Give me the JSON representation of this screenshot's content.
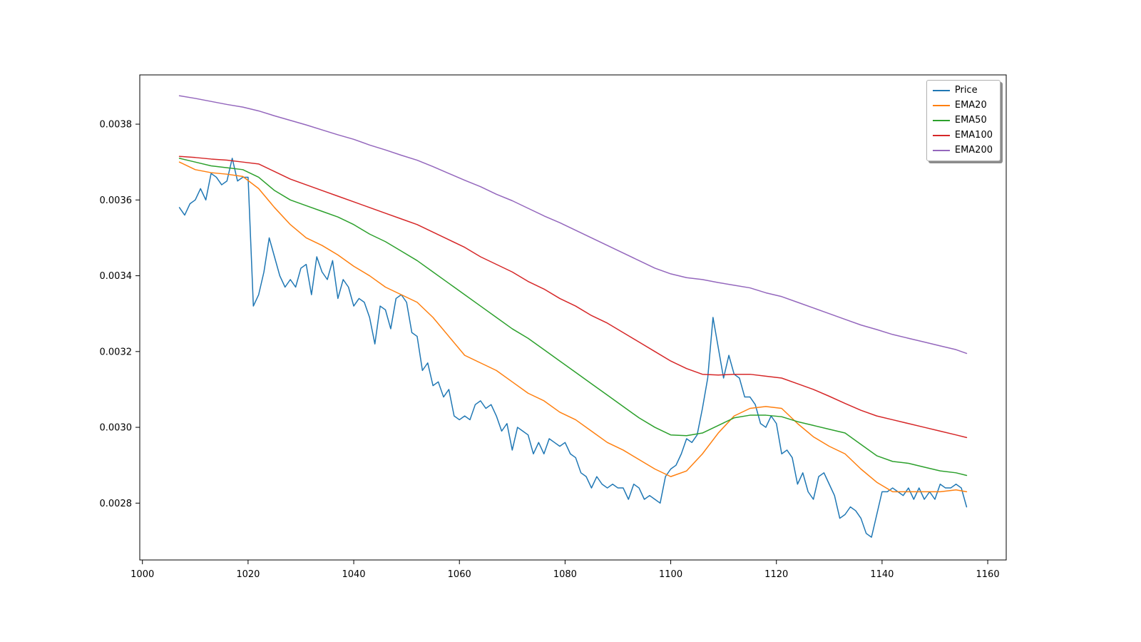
{
  "chart_data": {
    "type": "line",
    "title": "",
    "xlabel": "",
    "ylabel": "",
    "grid": false,
    "legend_position": "upper right",
    "xlim": [
      999.5,
      1163.5
    ],
    "ylim": [
      0.00265,
      0.00393
    ],
    "x_ticks": [
      1000,
      1020,
      1040,
      1060,
      1080,
      1100,
      1120,
      1140,
      1160
    ],
    "x_tick_labels": [
      "1000",
      "1020",
      "1040",
      "1060",
      "1080",
      "1100",
      "1120",
      "1140",
      "1160"
    ],
    "y_ticks": [
      0.0028,
      0.003,
      0.0032,
      0.0034,
      0.0036,
      0.0038
    ],
    "y_tick_labels": [
      "0.0028",
      "0.0030",
      "0.0032",
      "0.0034",
      "0.0036",
      "0.0038"
    ],
    "series": [
      {
        "name": "Price",
        "color": "#1f77b4",
        "x": [
          1007,
          1008,
          1009,
          1010,
          1011,
          1012,
          1013,
          1014,
          1015,
          1016,
          1017,
          1018,
          1019,
          1020,
          1021,
          1022,
          1023,
          1024,
          1025,
          1026,
          1027,
          1028,
          1029,
          1030,
          1031,
          1032,
          1033,
          1034,
          1035,
          1036,
          1037,
          1038,
          1039,
          1040,
          1041,
          1042,
          1043,
          1044,
          1045,
          1046,
          1047,
          1048,
          1049,
          1050,
          1051,
          1052,
          1053,
          1054,
          1055,
          1056,
          1057,
          1058,
          1059,
          1060,
          1061,
          1062,
          1063,
          1064,
          1065,
          1066,
          1067,
          1068,
          1069,
          1070,
          1071,
          1072,
          1073,
          1074,
          1075,
          1076,
          1077,
          1078,
          1079,
          1080,
          1081,
          1082,
          1083,
          1084,
          1085,
          1086,
          1087,
          1088,
          1089,
          1090,
          1091,
          1092,
          1093,
          1094,
          1095,
          1096,
          1097,
          1098,
          1099,
          1100,
          1101,
          1102,
          1103,
          1104,
          1105,
          1106,
          1107,
          1108,
          1109,
          1110,
          1111,
          1112,
          1113,
          1114,
          1115,
          1116,
          1117,
          1118,
          1119,
          1120,
          1121,
          1122,
          1123,
          1124,
          1125,
          1126,
          1127,
          1128,
          1129,
          1130,
          1131,
          1132,
          1133,
          1134,
          1135,
          1136,
          1137,
          1138,
          1139,
          1140,
          1141,
          1142,
          1143,
          1144,
          1145,
          1146,
          1147,
          1148,
          1149,
          1150,
          1151,
          1152,
          1153,
          1154,
          1155,
          1156
        ],
        "y": [
          0.00358,
          0.00356,
          0.00359,
          0.0036,
          0.00363,
          0.0036,
          0.00367,
          0.00366,
          0.00364,
          0.00365,
          0.00371,
          0.00365,
          0.00366,
          0.00366,
          0.00332,
          0.00335,
          0.00341,
          0.0035,
          0.00345,
          0.0034,
          0.00337,
          0.00339,
          0.00337,
          0.00342,
          0.00343,
          0.00335,
          0.00345,
          0.00341,
          0.00339,
          0.00344,
          0.00334,
          0.00339,
          0.00337,
          0.00332,
          0.00334,
          0.00333,
          0.00329,
          0.00322,
          0.00332,
          0.00331,
          0.00326,
          0.00334,
          0.00335,
          0.00333,
          0.00325,
          0.00324,
          0.00315,
          0.00317,
          0.00311,
          0.00312,
          0.00308,
          0.0031,
          0.00303,
          0.00302,
          0.00303,
          0.00302,
          0.00306,
          0.00307,
          0.00305,
          0.00306,
          0.00303,
          0.00299,
          0.00301,
          0.00294,
          0.003,
          0.00299,
          0.00298,
          0.00293,
          0.00296,
          0.00293,
          0.00297,
          0.00296,
          0.00295,
          0.00296,
          0.00293,
          0.00292,
          0.00288,
          0.00287,
          0.00284,
          0.00287,
          0.00285,
          0.00284,
          0.00285,
          0.00284,
          0.00284,
          0.00281,
          0.00285,
          0.00284,
          0.00281,
          0.00282,
          0.00281,
          0.0028,
          0.00287,
          0.00289,
          0.0029,
          0.00293,
          0.00297,
          0.00296,
          0.00298,
          0.00305,
          0.00313,
          0.00329,
          0.00321,
          0.00313,
          0.00319,
          0.00314,
          0.00313,
          0.00308,
          0.00308,
          0.00306,
          0.00301,
          0.003,
          0.00303,
          0.00301,
          0.00293,
          0.00294,
          0.00292,
          0.00285,
          0.00288,
          0.00283,
          0.00281,
          0.00287,
          0.00288,
          0.00285,
          0.00282,
          0.00276,
          0.00277,
          0.00279,
          0.00278,
          0.00276,
          0.00272,
          0.00271,
          0.00277,
          0.00283,
          0.00283,
          0.00284,
          0.00283,
          0.00282,
          0.00284,
          0.00281,
          0.00284,
          0.00281,
          0.00283,
          0.00281,
          0.00285,
          0.00284,
          0.00284,
          0.00285,
          0.00284,
          0.00279
        ]
      },
      {
        "name": "EMA20",
        "color": "#ff7f0e",
        "x": [
          1007,
          1010,
          1013,
          1016,
          1019,
          1022,
          1025,
          1028,
          1031,
          1034,
          1037,
          1040,
          1043,
          1046,
          1049,
          1052,
          1055,
          1058,
          1061,
          1064,
          1067,
          1070,
          1073,
          1076,
          1079,
          1082,
          1085,
          1088,
          1091,
          1094,
          1097,
          1100,
          1103,
          1106,
          1109,
          1112,
          1115,
          1118,
          1121,
          1124,
          1127,
          1130,
          1133,
          1136,
          1139,
          1142,
          1145,
          1148,
          1151,
          1154,
          1156
        ],
        "y": [
          0.0037,
          0.00368,
          0.003672,
          0.003668,
          0.003662,
          0.00363,
          0.00358,
          0.003535,
          0.0035,
          0.00348,
          0.003455,
          0.003425,
          0.0034,
          0.00337,
          0.00335,
          0.00333,
          0.00329,
          0.00324,
          0.00319,
          0.00317,
          0.00315,
          0.00312,
          0.00309,
          0.00307,
          0.00304,
          0.00302,
          0.00299,
          0.00296,
          0.00294,
          0.002915,
          0.00289,
          0.00287,
          0.002885,
          0.00293,
          0.002985,
          0.00303,
          0.00305,
          0.003055,
          0.00305,
          0.00301,
          0.002975,
          0.00295,
          0.00293,
          0.00289,
          0.002855,
          0.00283,
          0.00283,
          0.00283,
          0.00283,
          0.002835,
          0.00283
        ]
      },
      {
        "name": "EMA50",
        "color": "#2ca02c",
        "x": [
          1007,
          1010,
          1013,
          1016,
          1019,
          1022,
          1025,
          1028,
          1031,
          1034,
          1037,
          1040,
          1043,
          1046,
          1049,
          1052,
          1055,
          1058,
          1061,
          1064,
          1067,
          1070,
          1073,
          1076,
          1079,
          1082,
          1085,
          1088,
          1091,
          1094,
          1097,
          1100,
          1103,
          1106,
          1109,
          1112,
          1115,
          1118,
          1121,
          1124,
          1127,
          1130,
          1133,
          1136,
          1139,
          1142,
          1145,
          1148,
          1151,
          1154,
          1156
        ],
        "y": [
          0.00371,
          0.0037,
          0.00369,
          0.003685,
          0.00368,
          0.00366,
          0.003625,
          0.0036,
          0.003585,
          0.00357,
          0.003555,
          0.003535,
          0.00351,
          0.00349,
          0.003465,
          0.00344,
          0.00341,
          0.00338,
          0.00335,
          0.00332,
          0.00329,
          0.00326,
          0.003235,
          0.003205,
          0.003175,
          0.003145,
          0.003115,
          0.003085,
          0.003055,
          0.003025,
          0.003,
          0.00298,
          0.002978,
          0.002985,
          0.003005,
          0.003025,
          0.003032,
          0.003032,
          0.003028,
          0.003015,
          0.003005,
          0.002995,
          0.002985,
          0.002955,
          0.002925,
          0.00291,
          0.002905,
          0.002895,
          0.002885,
          0.00288,
          0.002873
        ]
      },
      {
        "name": "EMA100",
        "color": "#d62728",
        "x": [
          1007,
          1010,
          1013,
          1016,
          1019,
          1022,
          1025,
          1028,
          1031,
          1034,
          1037,
          1040,
          1043,
          1046,
          1049,
          1052,
          1055,
          1058,
          1061,
          1064,
          1067,
          1070,
          1073,
          1076,
          1079,
          1082,
          1085,
          1088,
          1091,
          1094,
          1097,
          1100,
          1103,
          1106,
          1109,
          1112,
          1115,
          1118,
          1121,
          1124,
          1127,
          1130,
          1133,
          1136,
          1139,
          1142,
          1145,
          1148,
          1151,
          1154,
          1156
        ],
        "y": [
          0.003715,
          0.003712,
          0.003708,
          0.003705,
          0.0037,
          0.003695,
          0.003675,
          0.003655,
          0.00364,
          0.003625,
          0.00361,
          0.003595,
          0.00358,
          0.003565,
          0.00355,
          0.003535,
          0.003515,
          0.003495,
          0.003475,
          0.00345,
          0.00343,
          0.00341,
          0.003385,
          0.003365,
          0.00334,
          0.00332,
          0.003295,
          0.003275,
          0.00325,
          0.003225,
          0.0032,
          0.003175,
          0.003155,
          0.00314,
          0.003138,
          0.00314,
          0.00314,
          0.003135,
          0.00313,
          0.003115,
          0.0031,
          0.003082,
          0.003063,
          0.003045,
          0.00303,
          0.00302,
          0.00301,
          0.003,
          0.00299,
          0.00298,
          0.002973
        ]
      },
      {
        "name": "EMA200",
        "color": "#9467bd",
        "x": [
          1007,
          1010,
          1013,
          1016,
          1019,
          1022,
          1025,
          1028,
          1031,
          1034,
          1037,
          1040,
          1043,
          1046,
          1049,
          1052,
          1055,
          1058,
          1061,
          1064,
          1067,
          1070,
          1073,
          1076,
          1079,
          1082,
          1085,
          1088,
          1091,
          1094,
          1097,
          1100,
          1103,
          1106,
          1109,
          1112,
          1115,
          1118,
          1121,
          1124,
          1127,
          1130,
          1133,
          1136,
          1139,
          1142,
          1145,
          1148,
          1151,
          1154,
          1156
        ],
        "y": [
          0.003875,
          0.003868,
          0.00386,
          0.003852,
          0.003845,
          0.003835,
          0.003822,
          0.00381,
          0.003798,
          0.003785,
          0.003772,
          0.00376,
          0.003745,
          0.003732,
          0.003718,
          0.003705,
          0.003688,
          0.00367,
          0.003652,
          0.003635,
          0.003615,
          0.003598,
          0.003578,
          0.003558,
          0.00354,
          0.00352,
          0.0035,
          0.00348,
          0.00346,
          0.00344,
          0.00342,
          0.003405,
          0.003395,
          0.00339,
          0.003382,
          0.003375,
          0.003368,
          0.003355,
          0.003345,
          0.00333,
          0.003315,
          0.0033,
          0.003285,
          0.00327,
          0.003258,
          0.003245,
          0.003235,
          0.003225,
          0.003215,
          0.003205,
          0.003195
        ]
      }
    ]
  }
}
